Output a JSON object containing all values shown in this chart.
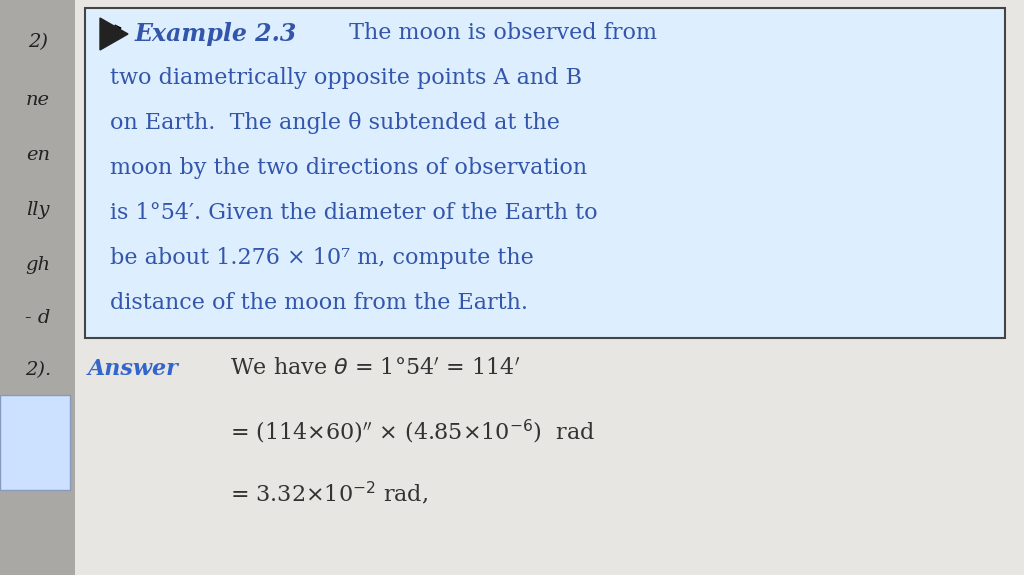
{
  "bg_color": "#c8c4be",
  "page_color": "#e8e6e2",
  "box_bg_color": "#ddeeff",
  "box_edge_color": "#444444",
  "left_strip_color": "#aaa8a4",
  "answer_bg_color": "#e8e6e2",
  "title_bold": "Example 2.3",
  "box_text_color": "#3355aa",
  "arrow_color": "#222222",
  "answer_label_color": "#3366cc",
  "answer_text_color": "#333333",
  "left_label_color": "#222222",
  "left_labels": [
    "2)",
    "ne",
    "en",
    "lly",
    "gh",
    "- d",
    "2)."
  ],
  "box_lines": [
    " The moon is observed from",
    "two diametrically opposite points A and B",
    "on Earth.  The angle θ subtended at the",
    "moon by the two directions of observation",
    "is 1°54′. Given the diameter of the Earth to",
    "be about 1.276 × 10⁷ m, compute the",
    "distance of the moon from the Earth."
  ],
  "figsize": [
    10.24,
    5.75
  ],
  "dpi": 100
}
